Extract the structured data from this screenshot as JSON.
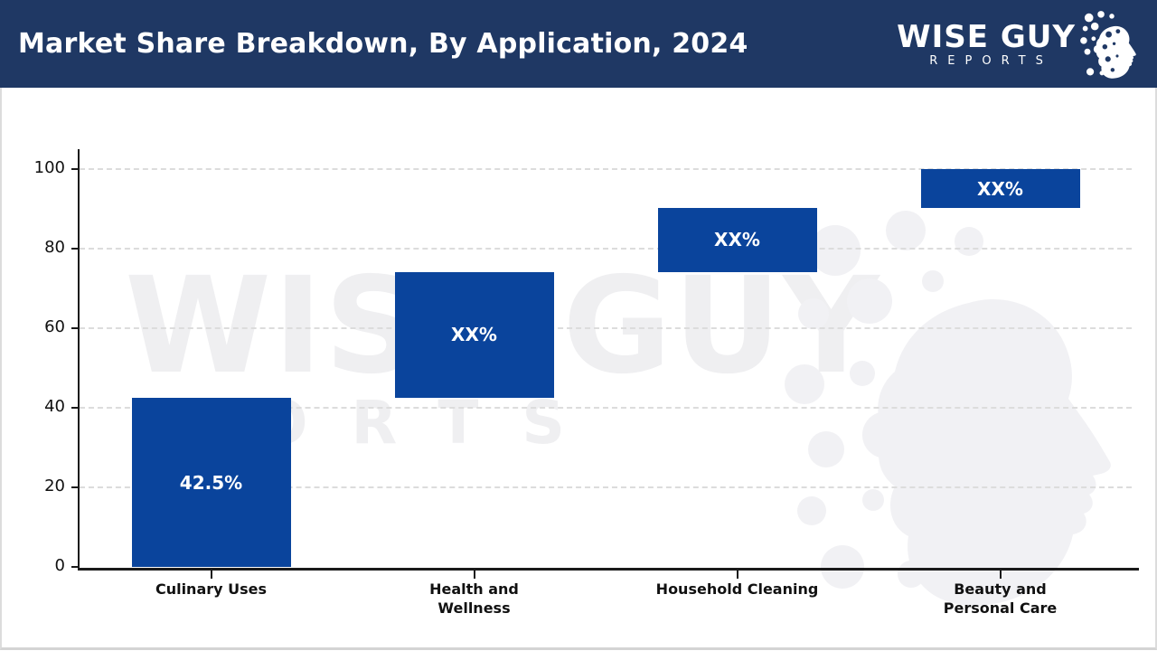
{
  "header": {
    "title": "Market Share Breakdown, By Application, 2024",
    "bg_color": "#1f3864",
    "logo": {
      "line1": "WISE GUY",
      "line2": "REPORTS"
    }
  },
  "watermark": {
    "line1": "WISE GUY",
    "line2": "PORTS"
  },
  "chart_data": {
    "type": "bar",
    "subtype": "waterfall",
    "title": "Market Share Breakdown, By Application, 2024",
    "categories": [
      "Culinary Uses",
      "Health and\nWellness",
      "Household Cleaning",
      "Beauty and\nPersonal Care"
    ],
    "segments": [
      {
        "category": "Culinary Uses",
        "start": 0,
        "end": 42.5,
        "label": "42.5%"
      },
      {
        "category": "Health and Wellness",
        "start": 42.5,
        "end": 74.2,
        "label": "XX%"
      },
      {
        "category": "Household Cleaning",
        "start": 74.2,
        "end": 90.2,
        "label": "XX%"
      },
      {
        "category": "Beauty and Personal Care",
        "start": 90.2,
        "end": 100,
        "label": "XX%"
      }
    ],
    "y_ticks": [
      0,
      20,
      40,
      60,
      80,
      100
    ],
    "ylim": [
      0,
      100
    ],
    "grid": "horizontal-dashed",
    "legend": "none",
    "bar_color": "#0a449c",
    "bar_label_color": "#ffffff",
    "axis_color": "#1a1a1a",
    "grid_color": "#dcdcdc",
    "tick_label_color": "#111111"
  }
}
